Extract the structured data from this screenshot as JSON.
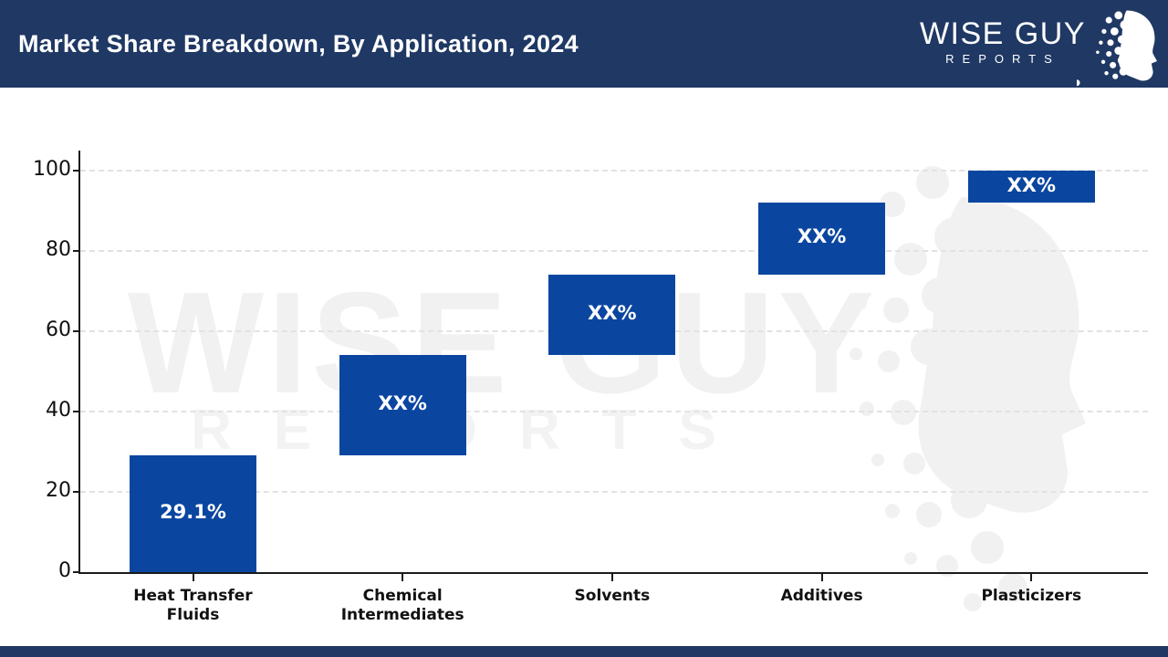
{
  "header": {
    "title": "Market Share Breakdown, By Application, 2024",
    "logo": {
      "wise_guy": "WISE GUY",
      "reports": "REPORTS"
    }
  },
  "watermark": {
    "line1": "WISE GUY",
    "line2": "REPORTS"
  },
  "colors": {
    "header_bg": "#1f3864",
    "footer_bg": "#1f3864",
    "bar": "#0a46a0",
    "bar_label": "#ffffff",
    "grid": "#e2e2e2",
    "axis": "#1a1a1a",
    "watermark": "#f1f1f1"
  },
  "chart_data": {
    "type": "bar",
    "subtype": "waterfall",
    "title": "Market Share Breakdown, By Application, 2024",
    "xlabel": "",
    "ylabel": "",
    "categories": [
      "Heat Transfer Fluids",
      "Chemical Intermediates",
      "Solvents",
      "Additives",
      "Plasticizers"
    ],
    "segments": [
      {
        "category": "Heat Transfer Fluids",
        "start": 0,
        "end": 29.1,
        "label": "29.1%"
      },
      {
        "category": "Chemical Intermediates",
        "start": 29.1,
        "end": 54.2,
        "label": "XX%"
      },
      {
        "category": "Solvents",
        "start": 54.2,
        "end": 74.2,
        "label": "XX%"
      },
      {
        "category": "Additives",
        "start": 74.2,
        "end": 92.0,
        "label": "XX%"
      },
      {
        "category": "Plasticizers",
        "start": 92.0,
        "end": 100.0,
        "label": "XX%"
      }
    ],
    "yticks": [
      0,
      20,
      40,
      60,
      80,
      100
    ],
    "ylim": [
      0,
      105
    ],
    "grid": "horizontal-dashed",
    "legend": "none"
  }
}
